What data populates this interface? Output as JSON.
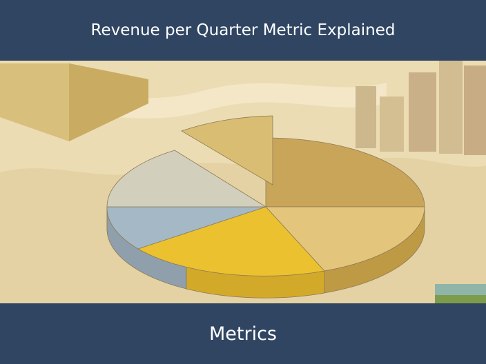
{
  "header": {
    "title": "Revenue per Quarter Metric Explained"
  },
  "footer": {
    "label": "Metrics"
  }
}
